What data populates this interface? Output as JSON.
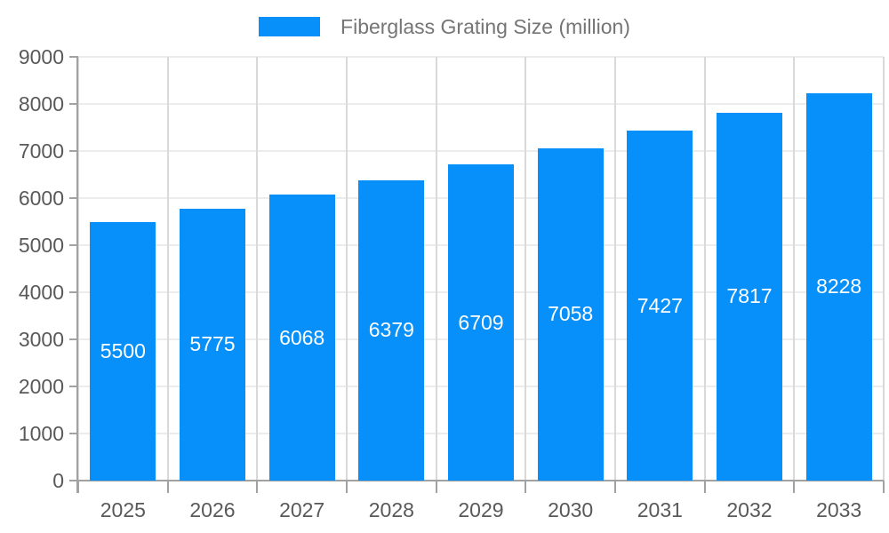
{
  "chart_data": {
    "type": "bar",
    "title": "Fiberglass Grating Size (million)",
    "series_name": "Fiberglass Grating Size (million)",
    "categories": [
      "2025",
      "2026",
      "2027",
      "2028",
      "2029",
      "2030",
      "2031",
      "2032",
      "2033"
    ],
    "values": [
      5500,
      5775,
      6068,
      6379,
      6709,
      7058,
      7427,
      7817,
      8228
    ],
    "xlabel": "",
    "ylabel": "",
    "ylim": [
      0,
      9000
    ],
    "ytick_step": 1000,
    "grid": true,
    "legend_position": "top-center",
    "value_labels": "inside-center",
    "colors": {
      "bar_fill": "#0890fa",
      "value_label": "#ffffff",
      "axis_line": "#a2a2a2",
      "hgrid_line": "#ececec",
      "vgrid_line": "#d9d9d9",
      "axis_label": "#595959",
      "legend_text": "#757575"
    }
  }
}
